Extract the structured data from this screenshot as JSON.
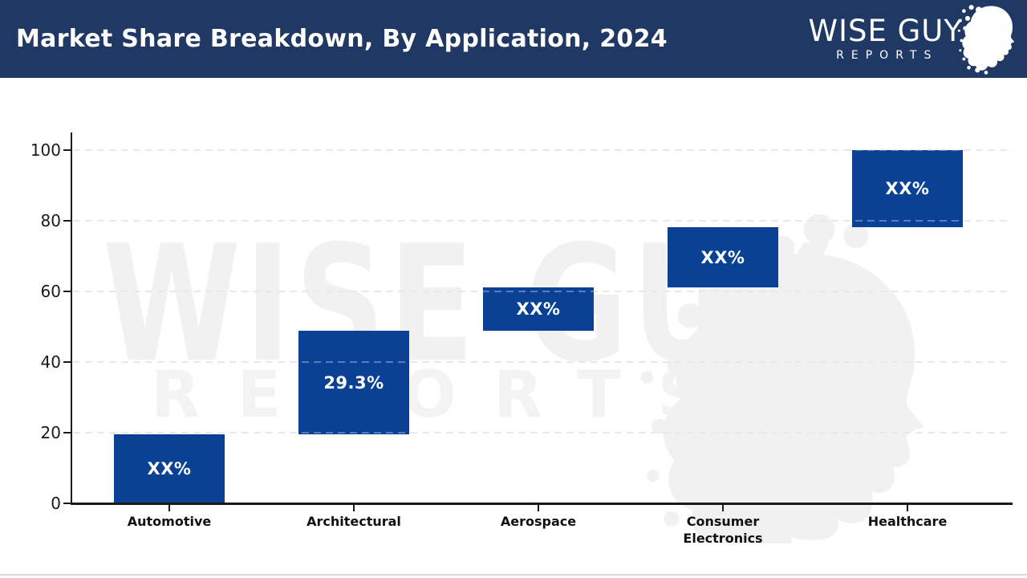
{
  "header": {
    "title": "Market Share Breakdown, By Application, 2024",
    "logo": {
      "name": "WISE GUY",
      "tagline": "REPORTS"
    }
  },
  "watermark": {
    "line1": "WISE GUY",
    "line2": "REPORTS"
  },
  "chart_data": {
    "type": "bar",
    "subtype": "waterfall",
    "title": "Market Share Breakdown, By Application, 2024",
    "categories": [
      "Automotive",
      "Architectural",
      "Aerospace",
      "Consumer Electronics",
      "Healthcare"
    ],
    "tick_labels": [
      "Automotive",
      "Architectural",
      "Aerospace",
      "Consumer\nElectronics",
      "Healthcare"
    ],
    "segments": [
      {
        "category": "Automotive",
        "start": 0,
        "end": 19.5,
        "label": "XX%"
      },
      {
        "category": "Architectural",
        "start": 19.5,
        "end": 48.8,
        "label": "29.3%"
      },
      {
        "category": "Aerospace",
        "start": 48.8,
        "end": 61.1,
        "label": "XX%"
      },
      {
        "category": "Consumer Electronics",
        "start": 61.1,
        "end": 78.2,
        "label": "XX%"
      },
      {
        "category": "Healthcare",
        "start": 78.2,
        "end": 100,
        "label": "XX%"
      }
    ],
    "yticks": [
      0,
      20,
      40,
      60,
      80,
      100
    ],
    "ylim": [
      0,
      100
    ],
    "xlabel": "",
    "ylabel": "",
    "grid": true,
    "grid_style": "dashed",
    "legend": false,
    "bar_color": "#0a4194",
    "bar_label_color": "#ffffff",
    "header_color": "#1f3864"
  }
}
